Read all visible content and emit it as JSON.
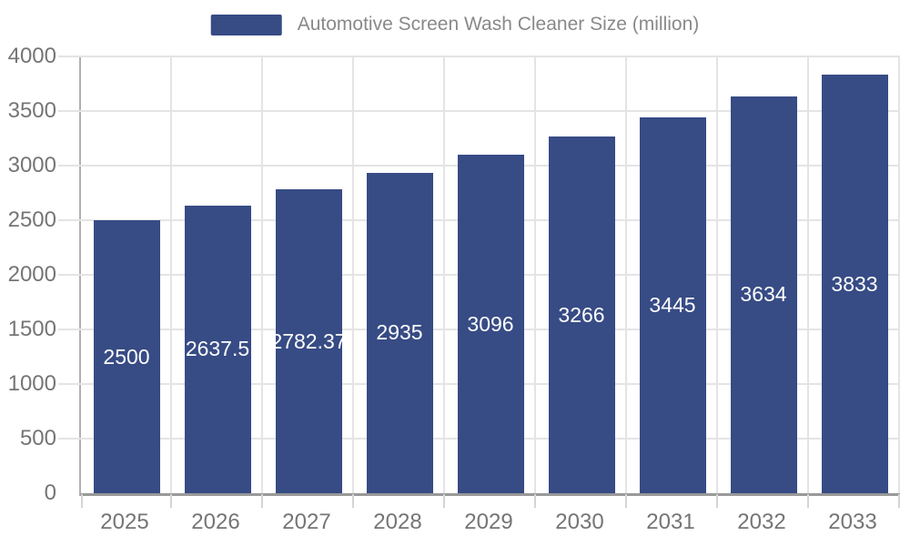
{
  "legend": {
    "label": "Automotive Screen Wash Cleaner Size (million)"
  },
  "chart_data": {
    "type": "bar",
    "title": "Automotive Screen Wash Cleaner Size (million)",
    "categories": [
      "2025",
      "2026",
      "2027",
      "2028",
      "2029",
      "2030",
      "2031",
      "2032",
      "2033"
    ],
    "values": [
      2500,
      2637.5,
      2782.37,
      2935,
      3096,
      3266,
      3445,
      3634,
      3833
    ],
    "labels": [
      "2500",
      "2637.5",
      "2782.37",
      "2935",
      "3096",
      "3266",
      "3445",
      "3634",
      "3833"
    ],
    "xlabel": "",
    "ylabel": "",
    "ylim": [
      0,
      4000
    ],
    "yticks": [
      0,
      500,
      1000,
      1500,
      2000,
      2500,
      3000,
      3500,
      4000
    ],
    "grid": true,
    "legend_position": "top",
    "bar_color": "#374b85",
    "value_label_color": "#ffffff",
    "axis_label_color": "#757575",
    "legend_text_color": "#898989"
  }
}
